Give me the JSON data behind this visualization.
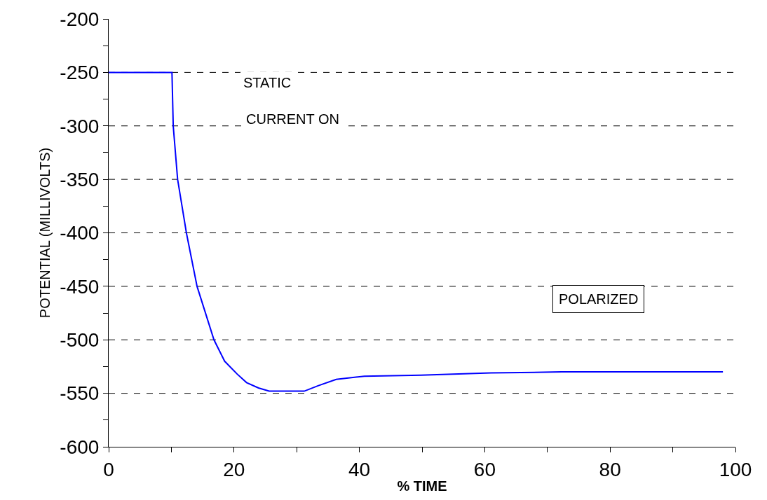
{
  "chart_data": {
    "type": "line",
    "xlabel": "% TIME",
    "ylabel": "POTENTIAL (MILLIVOLTS)",
    "x": [
      0,
      10.1,
      10.3,
      11,
      12.4,
      14.1,
      16.8,
      18.5,
      20.5,
      22,
      23.9,
      25.6,
      28,
      31.2,
      33.4,
      36.3,
      40.8,
      49.8,
      61,
      72.3,
      98
    ],
    "series": [
      {
        "color": "#0000ff",
        "values": [
          -250,
          -250,
          -300,
          -350,
          -400,
          -450,
          -500,
          -520,
          -532,
          -540,
          -545,
          -548,
          -548,
          -548,
          -543,
          -537,
          -534,
          -533,
          -531,
          -530,
          -530
        ]
      }
    ],
    "xlim": [
      0,
      100
    ],
    "ylim": [
      -600,
      -200
    ],
    "xticks": [
      0,
      {
        "value": 10,
        "label": null
      },
      20,
      {
        "value": 30,
        "label": null
      },
      40,
      {
        "value": 50,
        "label": null
      },
      60,
      {
        "value": 70,
        "label": null
      },
      80,
      {
        "value": 90,
        "label": null
      },
      100
    ],
    "yticks": [
      -600,
      {
        "value": -575,
        "label": null
      },
      -550,
      {
        "value": -525,
        "label": null
      },
      -500,
      {
        "value": -475,
        "label": null
      },
      -450,
      {
        "value": -425,
        "label": null
      },
      -400,
      {
        "value": -375,
        "label": null
      },
      -350,
      {
        "value": -325,
        "label": null
      },
      -300,
      {
        "value": -275,
        "label": null
      },
      -250,
      {
        "value": -225,
        "label": null
      },
      -200
    ],
    "grid": "y",
    "line_style": "solid",
    "annotations": [
      "STATIC",
      "CURRENT ON",
      "POLARIZED"
    ]
  }
}
